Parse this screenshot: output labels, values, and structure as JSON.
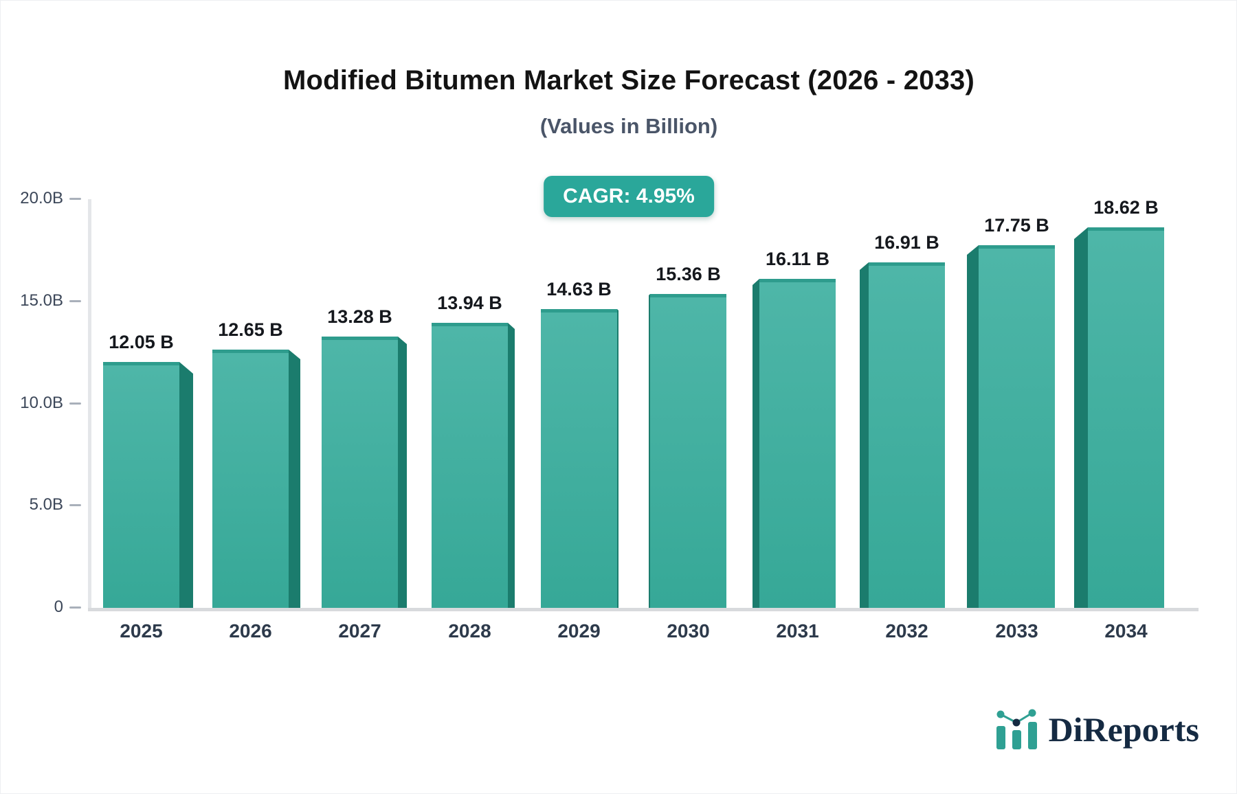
{
  "chart_data": {
    "type": "bar",
    "title": "Modified Bitumen Market Size Forecast (2026 - 2033)",
    "subtitle": "(Values in Billion)",
    "annotation": "CAGR: 4.95%",
    "categories": [
      "2025",
      "2026",
      "2027",
      "2028",
      "2029",
      "2030",
      "2031",
      "2032",
      "2033",
      "2034"
    ],
    "values": [
      12.05,
      12.65,
      13.28,
      13.94,
      14.63,
      15.36,
      16.11,
      16.91,
      17.75,
      18.62
    ],
    "value_labels": [
      "12.05 B",
      "12.65 B",
      "13.28 B",
      "13.94 B",
      "14.63 B",
      "15.36 B",
      "16.11 B",
      "16.91 B",
      "17.75 B",
      "18.62 B"
    ],
    "xlabel": "",
    "ylabel": "",
    "ylim": [
      0,
      20
    ],
    "yticks": [
      {
        "value": 0,
        "label": "0"
      },
      {
        "value": 5,
        "label": "5.0B"
      },
      {
        "value": 10,
        "label": "10.0B"
      },
      {
        "value": 15,
        "label": "15.0B"
      },
      {
        "value": 20,
        "label": "20.0B"
      }
    ],
    "grid": false,
    "legend": false,
    "bar_color_top": "#4EB6A8",
    "bar_color_bottom": "#36A897",
    "bar_side_color": "#1B7C6D",
    "bar_cap_color": "#2E9C8D"
  },
  "branding": {
    "logo_text": "DiReports",
    "logo_text_color": "#152A42",
    "logo_accent_color": "#2FA093"
  },
  "colors": {
    "accent_teal": "#2AA79A",
    "axis_line": "#D8DADD",
    "tick_text": "#3C4759",
    "value_text": "#15181D",
    "category_text": "#2D3A4B"
  }
}
